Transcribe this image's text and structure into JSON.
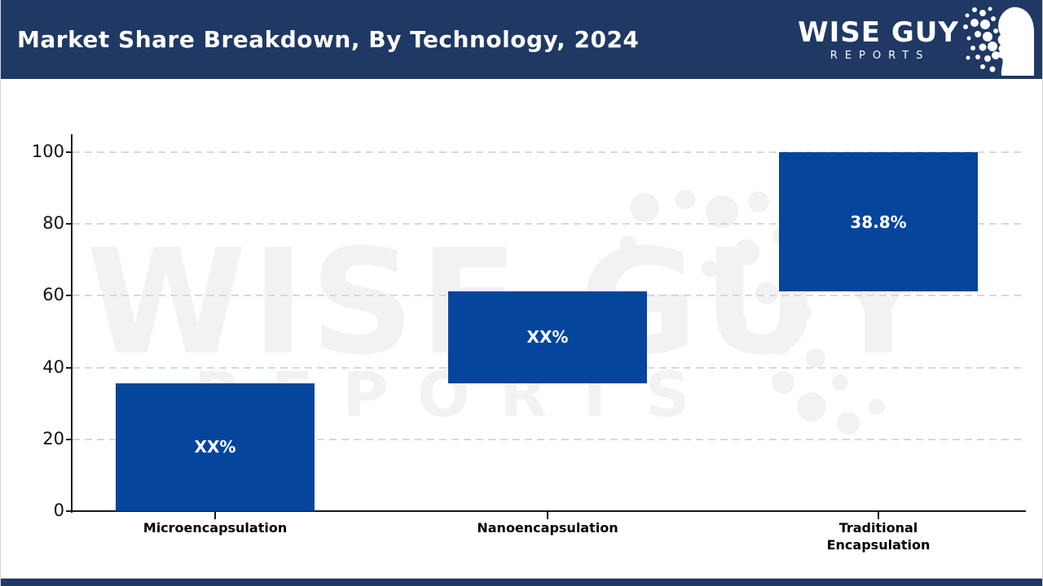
{
  "header": {
    "title": "Market Share Breakdown, By Technology, 2024",
    "logo": {
      "line1": "WISE GUY",
      "line2": "REPORTS"
    },
    "bg_color": "#1F3864"
  },
  "watermark": {
    "line1": "WISE GUY",
    "line2": "REPORTS"
  },
  "chart_data": {
    "type": "bar",
    "variant": "stacked-percentage-waterfall",
    "title": "Market Share Breakdown, By Technology, 2024",
    "categories": [
      "Microencapsulation",
      "Nanoencapsulation",
      "Traditional Encapsulation"
    ],
    "segments": [
      {
        "category": "Microencapsulation",
        "start": 0,
        "end": 35.7,
        "value_label": "XX%"
      },
      {
        "category": "Nanoencapsulation",
        "start": 35.7,
        "end": 61.2,
        "value_label": "XX%"
      },
      {
        "category": "Traditional Encapsulation",
        "start": 61.2,
        "end": 100,
        "value": 38.8,
        "value_label": "38.8%"
      }
    ],
    "ylim": [
      0,
      100
    ],
    "yticks": [
      0,
      20,
      40,
      60,
      80,
      100
    ],
    "grid": {
      "horizontal": true,
      "style": "dashed",
      "color": "#D9D9D9"
    },
    "bar_color": "#05459C",
    "bar_label_color": "#FFFFFF",
    "axis_color": "#1A1A1A",
    "legend": "none"
  }
}
